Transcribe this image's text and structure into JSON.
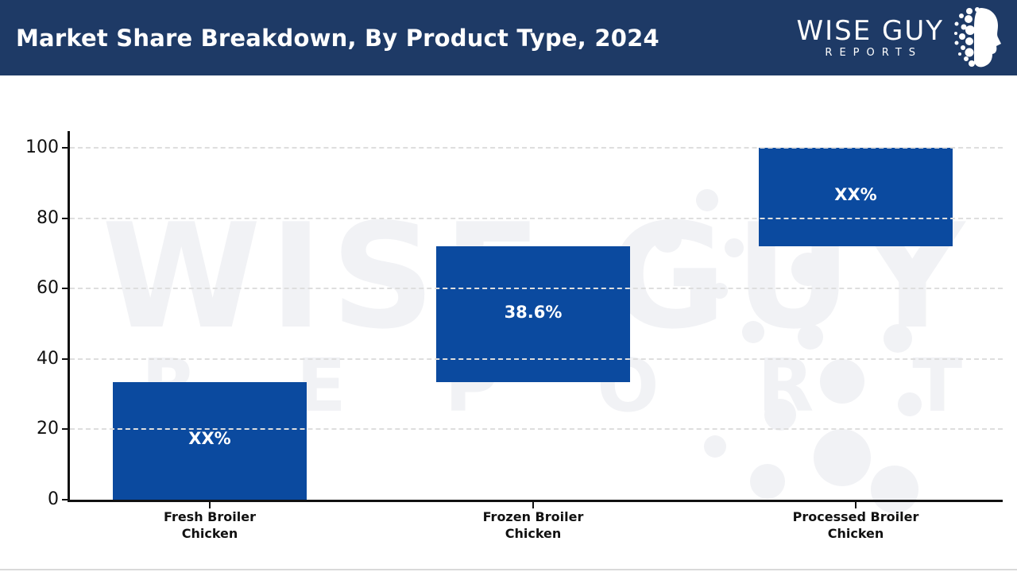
{
  "header": {
    "title": "Market Share Breakdown, By Product Type, 2024",
    "logo": {
      "wordmark": "WISE GUY",
      "subtext": "REPORTS"
    }
  },
  "watermark": {
    "line1": "WISE GUY",
    "line2": "REPORTS"
  },
  "chart_data": {
    "type": "bar",
    "subtype": "floating-segment-waterfall",
    "title": "Market Share Breakdown, By Product Type, 2024",
    "categories": [
      [
        "Fresh Broiler",
        "Chicken"
      ],
      [
        "Frozen Broiler",
        "Chicken"
      ],
      [
        "Processed Broiler",
        "Chicken"
      ]
    ],
    "segments": [
      {
        "category": "Fresh Broiler Chicken",
        "start": 0,
        "end": 33.4,
        "label": "XX%"
      },
      {
        "category": "Frozen Broiler Chicken",
        "start": 33.4,
        "end": 72,
        "label": "38.6%"
      },
      {
        "category": "Processed Broiler Chicken",
        "start": 72,
        "end": 100,
        "label": "XX%"
      }
    ],
    "yticks": [
      0,
      20,
      40,
      60,
      80,
      100
    ],
    "ylim": [
      0,
      105
    ],
    "xlabel": "",
    "ylabel": "",
    "legend": "none",
    "grid": "horizontal-dashed",
    "colors": {
      "bar": "#0b4a9f",
      "grid": "#dedede",
      "axis": "#111111",
      "value_label": "#ffffff",
      "header_bg": "#1e3a66",
      "watermark": "#f1f2f5"
    }
  }
}
